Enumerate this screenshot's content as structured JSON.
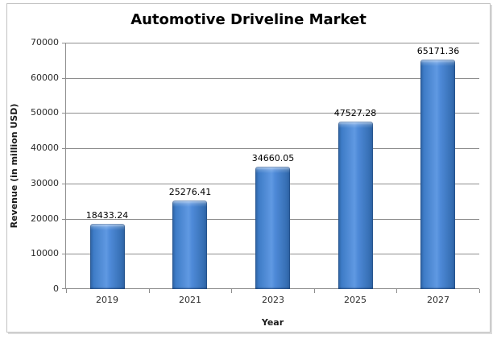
{
  "title": "Automotive Driveline Market",
  "colors": {
    "bar_edge": "#2b5f9e",
    "bar_center": "#6099e2",
    "bar_top_highlight": "#a8cbf0",
    "gridline": "#8e8e8e",
    "axis_line": "#8e8e8e",
    "text": "#2b2b2b",
    "frame_border": "#c2c2c2",
    "background": "#ffffff"
  },
  "chart_data": {
    "type": "bar",
    "title": "Automotive Driveline Market",
    "categories": [
      "2019",
      "2021",
      "2023",
      "2025",
      "2027"
    ],
    "values": [
      18433.24,
      25276.41,
      34660.05,
      47527.28,
      65171.36
    ],
    "data_labels": [
      "18433.24",
      "25276.41",
      "34660.05",
      "47527.28",
      "65171.36"
    ],
    "xlabel": "Year",
    "ylabel": "Revenue (in million USD)",
    "ylim": [
      0,
      70000
    ],
    "ytick_step": 10000,
    "ytick_labels": [
      "0",
      "10000",
      "20000",
      "30000",
      "40000",
      "50000",
      "60000",
      "70000"
    ],
    "grid": true,
    "legend_position": "none"
  }
}
